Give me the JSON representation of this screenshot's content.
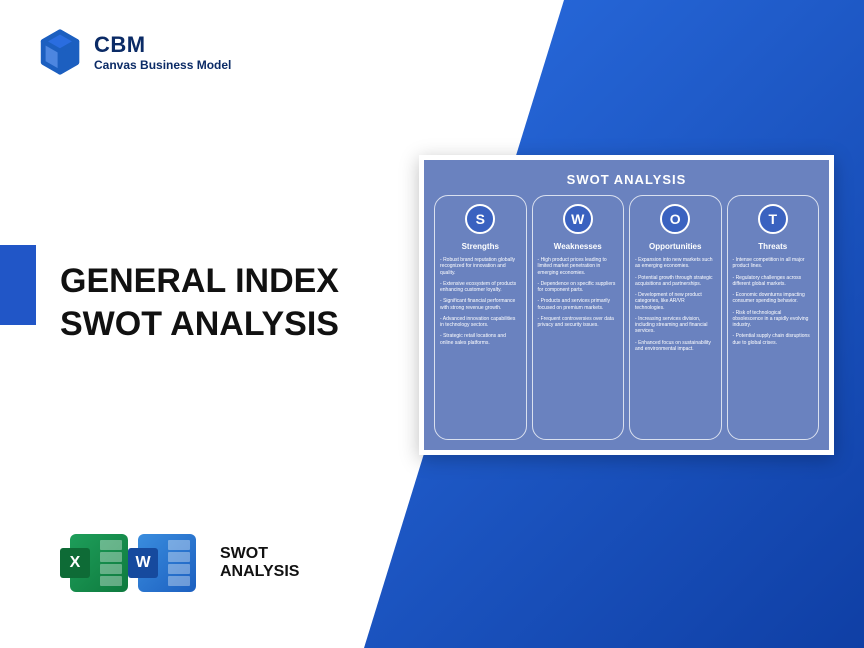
{
  "brand": {
    "title": "CBM",
    "subtitle": "Canvas Business Model",
    "logo_color": "#1c5fc0"
  },
  "main_title_line1": "GENERAL INDEX",
  "main_title_line2": "SWOT ANALYSIS",
  "bottom_label_line1": "SWOT",
  "bottom_label_line2": "ANALYSIS",
  "app_icons": {
    "excel": {
      "letter": "X",
      "primary": "#1e9e5a",
      "ribbon": "#0e6b36"
    },
    "word": {
      "letter": "W",
      "primary": "#3a8dde",
      "ribbon": "#164a9e"
    }
  },
  "colors": {
    "accent_blue": "#2156c7",
    "gradient_start": "#2a6de0",
    "gradient_end": "#0f3fa5",
    "card_bg": "#6a82bf",
    "circle_bg": "#3a62c0",
    "white": "#ffffff",
    "text_dark": "#111111",
    "brand_navy": "#0b2b66"
  },
  "swot": {
    "card_title": "SWOT ANALYSIS",
    "columns": [
      {
        "letter": "S",
        "title": "Strengths",
        "items": [
          "Robust brand reputation globally recognized for innovation and quality.",
          "Extensive ecosystem of products enhancing customer loyalty.",
          "Significant financial performance with strong revenue growth.",
          "Advanced innovation capabilities in technology sectors.",
          "Strategic retail locations and online sales platforms."
        ]
      },
      {
        "letter": "W",
        "title": "Weaknesses",
        "items": [
          "High product prices leading to limited market penetration in emerging economies.",
          "Dependence on specific suppliers for component parts.",
          "Products and services primarily focused on premium markets.",
          "Frequent controversies over data privacy and security issues."
        ]
      },
      {
        "letter": "O",
        "title": "Opportunities",
        "items": [
          "Expansion into new markets such as emerging economies.",
          "Potential growth through strategic acquisitions and partnerships.",
          "Development of new product categories, like AR/VR technologies.",
          "Increasing services division, including streaming and financial services.",
          "Enhanced focus on sustainability and environmental impact."
        ]
      },
      {
        "letter": "T",
        "title": "Threats",
        "items": [
          "Intense competition in all major product lines.",
          "Regulatory challenges across different global markets.",
          "Economic downturns impacting consumer spending behavior.",
          "Risk of technological obsolescence in a rapidly evolving industry.",
          "Potential supply chain disruptions due to global crises."
        ]
      }
    ]
  }
}
